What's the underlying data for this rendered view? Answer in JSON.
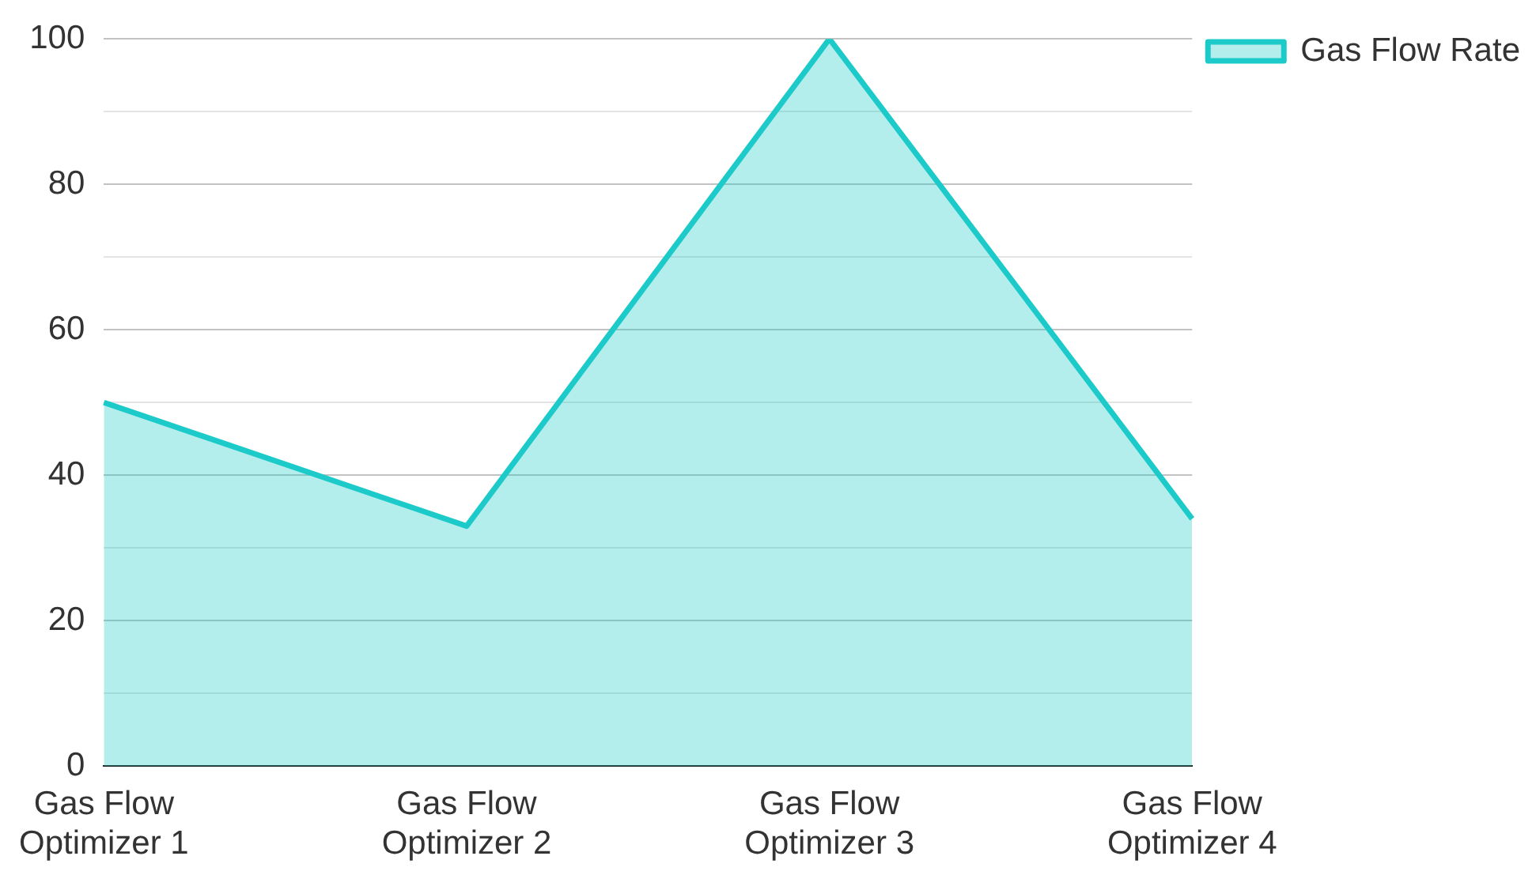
{
  "chart_data": {
    "type": "area",
    "categories": [
      "Gas Flow Optimizer 1",
      "Gas Flow Optimizer 2",
      "Gas Flow Optimizer 3",
      "Gas Flow Optimizer 4"
    ],
    "series": [
      {
        "name": "Gas Flow Rate",
        "color": "#1ccbc9",
        "values": [
          50,
          33,
          100,
          34
        ]
      }
    ],
    "ylim": [
      0,
      100
    ],
    "yticks": [
      0,
      {
        "value": 10,
        "label": null
      },
      20,
      {
        "value": 30,
        "label": null
      },
      40,
      {
        "value": 50,
        "label": null
      },
      60,
      {
        "value": 70,
        "label": null
      },
      80,
      {
        "value": 90,
        "label": null
      },
      100
    ],
    "grid": "y",
    "legend": "top right"
  }
}
